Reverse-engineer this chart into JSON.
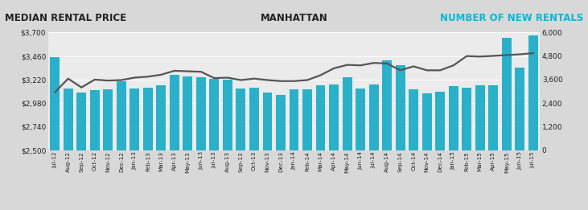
{
  "months": [
    "Jul-12",
    "Aug-12",
    "Sep-12",
    "Oct-12",
    "Nov-12",
    "Dec-12",
    "Jan-13",
    "Feb-13",
    "Mar-13",
    "Apr-13",
    "May-13",
    "Jun-13",
    "Jul-13",
    "Aug-13",
    "Sep-13",
    "Oct-13",
    "Nov-13",
    "Dec-13",
    "Jan-14",
    "Feb-14",
    "Mar-14",
    "Apr-14",
    "May-14",
    "Jun-14",
    "Jul-14",
    "Aug-14",
    "Sep-14",
    "Oct-14",
    "Nov-14",
    "Dec-14",
    "Jan-15",
    "Feb-15",
    "Mar-15",
    "Apr-15",
    "May-15",
    "Jun-15",
    "Jul-15"
  ],
  "bar_values": [
    4750,
    3150,
    2950,
    3050,
    3100,
    3500,
    3150,
    3200,
    3300,
    3850,
    3750,
    3700,
    3650,
    3600,
    3150,
    3200,
    2950,
    2800,
    3100,
    3100,
    3300,
    3350,
    3700,
    3150,
    3350,
    4600,
    4350,
    3100,
    2900,
    3000,
    3250,
    3200,
    3300,
    3300,
    5750,
    4200,
    5850
  ],
  "line_values": [
    3090,
    3230,
    3140,
    3220,
    3210,
    3215,
    3240,
    3250,
    3270,
    3310,
    3305,
    3300,
    3235,
    3240,
    3215,
    3230,
    3215,
    3205,
    3205,
    3215,
    3265,
    3335,
    3370,
    3365,
    3390,
    3385,
    3315,
    3355,
    3315,
    3315,
    3365,
    3460,
    3455,
    3462,
    3470,
    3478,
    3490
  ],
  "bar_color": "#2ab0c8",
  "line_color": "#555555",
  "title_left": "MEDIAN RENTAL PRICE",
  "title_center": "MANHATTAN",
  "title_right": "NUMBER OF NEW RENTALS",
  "title_left_color": "#222222",
  "title_center_color": "#222222",
  "title_right_color": "#00b8d4",
  "header_bg": "#d8d8d8",
  "plot_bg": "#ebebeb",
  "ylim_left": [
    2500,
    3700
  ],
  "ylim_right": [
    0,
    6000
  ],
  "yticks_left": [
    2500,
    2740,
    2980,
    3220,
    3460,
    3700
  ],
  "yticks_right": [
    0,
    1200,
    2400,
    3600,
    4800,
    6000
  ],
  "ytick_labels_left": [
    "$2,500",
    "$2,740",
    "$2,980",
    "$3,220",
    "$3,460",
    "$3,700"
  ],
  "ytick_labels_right": [
    "0",
    "1,200",
    "2,400",
    "3,600",
    "4,800",
    "6,000"
  ],
  "grid_color": "#ffffff",
  "header_font_size": 8.5,
  "tick_font_size": 6.5,
  "x_tick_font_size": 5.2
}
